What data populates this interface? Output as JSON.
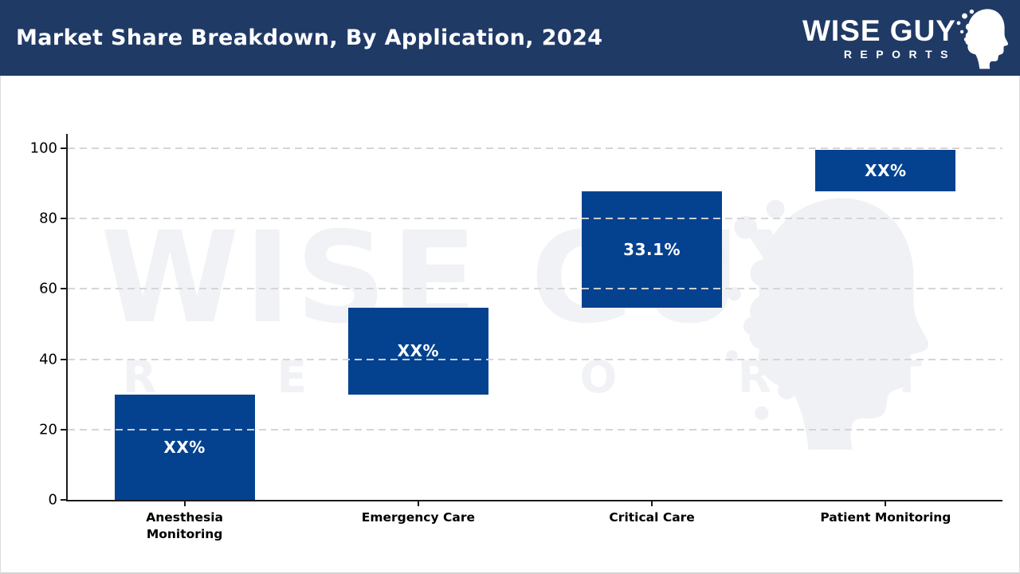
{
  "header": {
    "title": "Market Share Breakdown, By Application, 2024"
  },
  "logo": {
    "line1": "WISE GUY",
    "line2": "REPORTS"
  },
  "watermark": {
    "line1": "WISE GUY",
    "line2": "R E P O R T S"
  },
  "colors": {
    "header_bg": "#203a66",
    "bar_fill": "#04428f",
    "bar_label_text": "#ffffff",
    "grid_line": "#d4d4d4",
    "axis_line": "#1a1a1a",
    "watermark": "#f1f2f5"
  },
  "chart_data": {
    "type": "bar",
    "subtype": "floating-waterfall",
    "title": "Market Share Breakdown, By Application, 2024",
    "xlabel": "",
    "ylabel": "",
    "ylim": [
      0,
      104
    ],
    "yticks": [
      0,
      20,
      40,
      60,
      80,
      100
    ],
    "grid": "dashed-horizontal",
    "legend": "none",
    "categories": [
      "Anesthesia Monitoring",
      "Emergency Care",
      "Critical Care",
      "Patient Monitoring"
    ],
    "category_label_lines": [
      "Anesthesia\nMonitoring",
      "Emergency Care",
      "Critical Care",
      "Patient Monitoring"
    ],
    "segments": [
      {
        "category": "Anesthesia Monitoring",
        "start": 0,
        "end": 30.0,
        "value": 30.0,
        "value_label": "XX%"
      },
      {
        "category": "Emergency Care",
        "start": 30.0,
        "end": 54.6,
        "value": 24.6,
        "value_label": "XX%"
      },
      {
        "category": "Critical Care",
        "start": 54.6,
        "end": 87.7,
        "value": 33.1,
        "value_label": "33.1%"
      },
      {
        "category": "Patient Monitoring",
        "start": 87.7,
        "end": 99.6,
        "value": 11.9,
        "value_label": "XX%"
      }
    ]
  }
}
